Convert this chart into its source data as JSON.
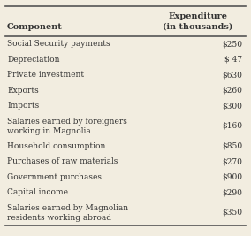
{
  "col1_header": "Component",
  "col2_header": "Expenditure\n(in thousands)",
  "rows": [
    [
      "Social Security payments",
      "$250"
    ],
    [
      "Depreciation",
      "$ 47"
    ],
    [
      "Private investment",
      "$630"
    ],
    [
      "Exports",
      "$260"
    ],
    [
      "Imports",
      "$300"
    ],
    [
      "Salaries earned by foreigners\nworking in Magnolia",
      "$160"
    ],
    [
      "Household consumption",
      "$850"
    ],
    [
      "Purchases of raw materials",
      "$270"
    ],
    [
      "Government purchases",
      "$900"
    ],
    [
      "Capital income",
      "$290"
    ],
    [
      "Salaries earned by Magnolian\nresidents working abroad",
      "$350"
    ]
  ],
  "bg_color": "#f2ede0",
  "header_line_color": "#555555",
  "text_color": "#333333",
  "font_size": 6.5,
  "header_font_size": 7.0
}
